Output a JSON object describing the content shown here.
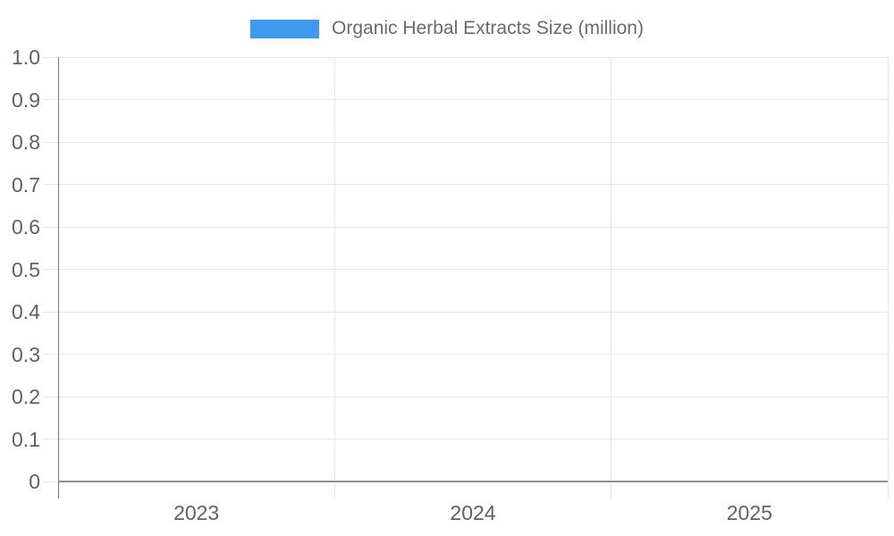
{
  "legend": {
    "items": [
      {
        "label": "Organic Herbal Extracts Size (million)",
        "color": "#3d9aec"
      }
    ]
  },
  "chart_data": {
    "type": "bar",
    "title": "Organic Herbal Extracts Size (million)",
    "categories": [
      "2023",
      "2024",
      "2025"
    ],
    "series": [
      {
        "name": "Organic Herbal Extracts Size (million)",
        "color": "#3d9aec",
        "values": [
          null,
          null,
          null
        ]
      }
    ],
    "plot_empty": true,
    "xlabel": "",
    "ylabel": "",
    "ylim": [
      0,
      1.0
    ],
    "yticks": [
      0,
      0.1,
      0.2,
      0.3,
      0.4,
      0.5,
      0.6,
      0.7,
      0.8,
      0.9,
      1.0
    ],
    "ytick_labels": [
      "0",
      "0.1",
      "0.2",
      "0.3",
      "0.4",
      "0.5",
      "0.6",
      "0.7",
      "0.8",
      "0.9",
      "1.0"
    ],
    "grid": true,
    "legend_position": "top-center",
    "colors": {
      "series": "#3d9aec",
      "gridline": "#e6e6e6",
      "axis_left": "#757575",
      "axis_bottom": "#909090",
      "axis_label": "#616161",
      "legend_text": "#6a6a6a"
    }
  }
}
